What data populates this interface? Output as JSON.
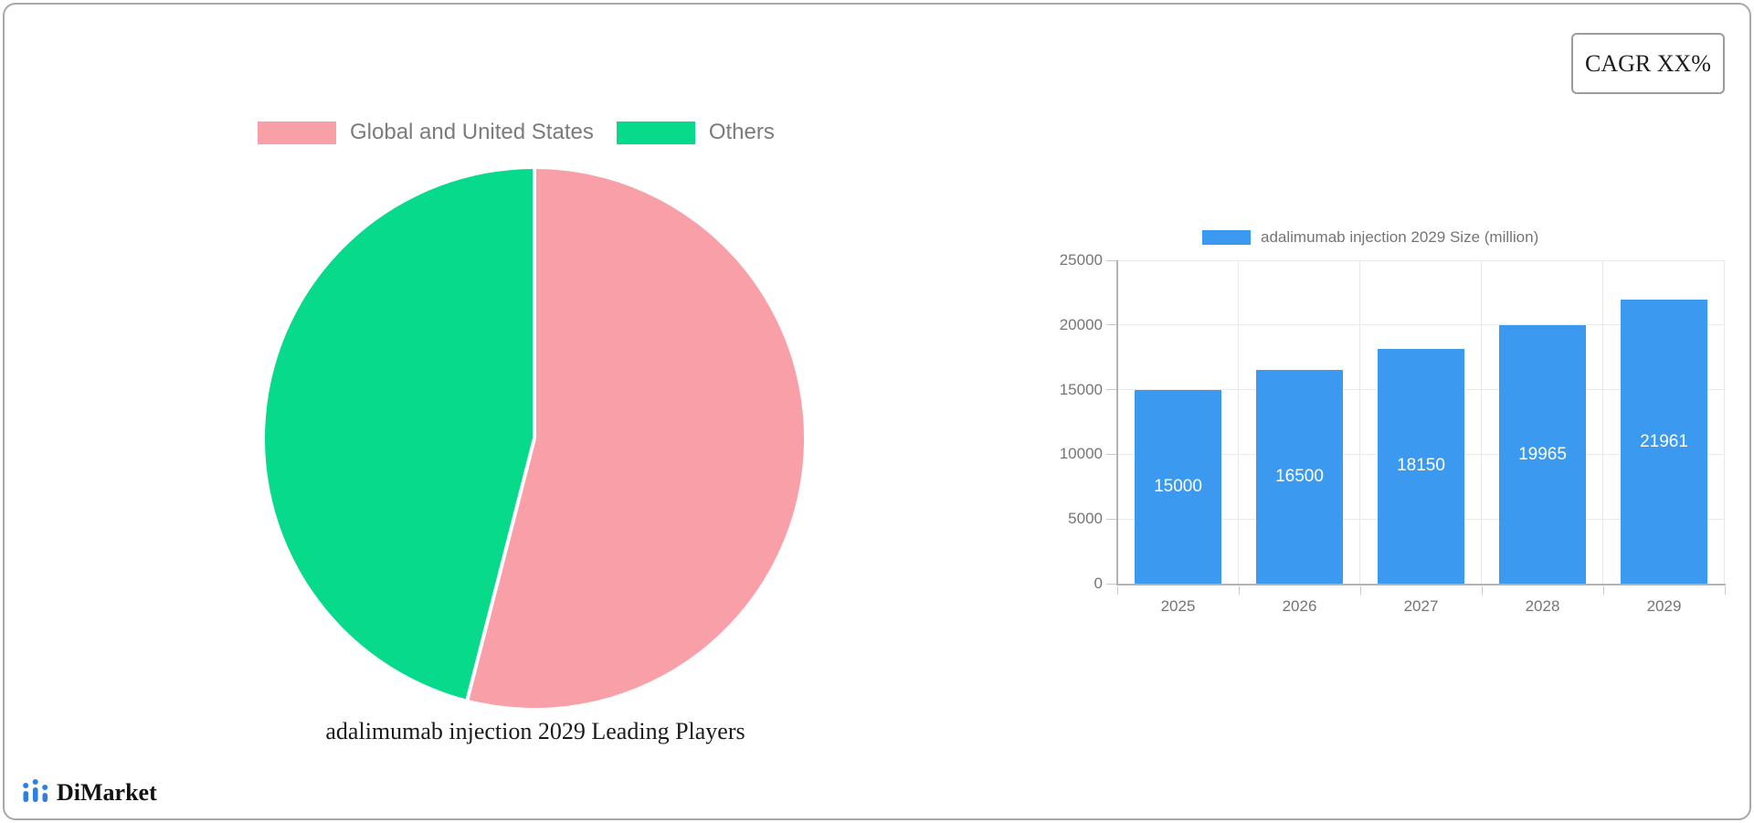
{
  "page": {
    "cagr_label": "CAGR XX%"
  },
  "branding": {
    "logo_text": "DiMarket",
    "logo_color": "#2e7fe0"
  },
  "chart_data": [
    {
      "type": "pie",
      "title": "adalimumab injection 2029 Leading Players",
      "slices": [
        {
          "label": "Global and United States",
          "value": 54,
          "color": "#f89fa7"
        },
        {
          "label": "Others",
          "value": 46,
          "color": "#08da8c"
        }
      ],
      "start_angle_deg": 0,
      "direction": "clockwise",
      "legend_position": "top",
      "separator_color": "#ffffff"
    },
    {
      "type": "bar",
      "legend": "adalimumab injection 2029 Size (million)",
      "categories": [
        "2025",
        "2026",
        "2027",
        "2028",
        "2029"
      ],
      "values": [
        15000,
        16500,
        18150,
        19965,
        21961
      ],
      "bar_color": "#3b9af0",
      "value_label_color": "#ffffff",
      "ylim": [
        0,
        25000
      ],
      "yticks": [
        0,
        5000,
        10000,
        15000,
        20000,
        25000
      ],
      "grid": true,
      "legend_position": "top"
    }
  ]
}
